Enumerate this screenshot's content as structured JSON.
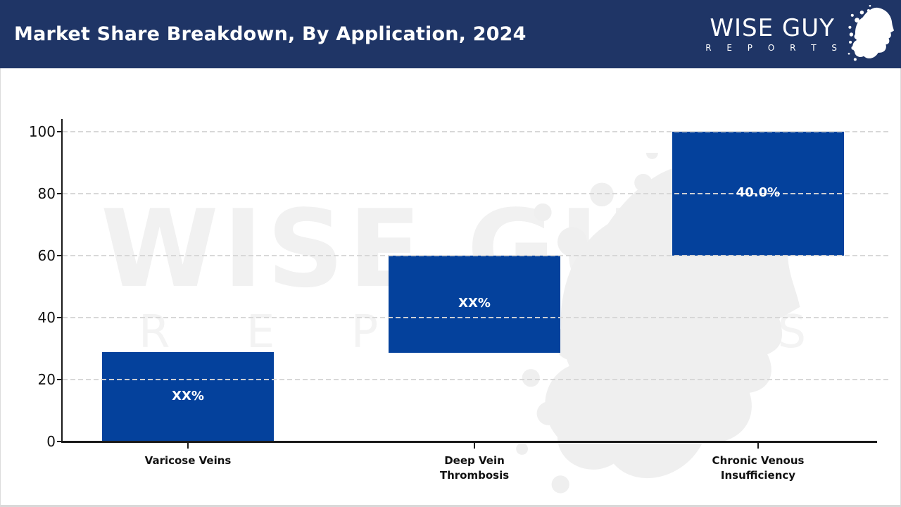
{
  "header": {
    "title": "Market Share Breakdown, By Application, 2024",
    "bg_color": "#1f3566",
    "logo_line1": "WISE GUY",
    "logo_line2": "R E P O R T S"
  },
  "watermark": {
    "line1": "WISE GUY",
    "line2": "R E P O R T S"
  },
  "chart_data": {
    "type": "bar",
    "variant": "floating-segment-breakdown",
    "title": "Market Share Breakdown, By Application, 2024",
    "categories": [
      "Varicose Veins",
      "Deep Vein Thrombosis",
      "Chronic Venous Insufficiency"
    ],
    "category_lines": [
      [
        "Varicose Veins"
      ],
      [
        "Deep Vein",
        "Thrombosis"
      ],
      [
        "Chronic Venous",
        "Insufficiency"
      ]
    ],
    "segments": [
      {
        "category": "Varicose Veins",
        "start": 0,
        "end": 28.8,
        "label": "XX%"
      },
      {
        "category": "Deep Vein Thrombosis",
        "start": 28.6,
        "end": 60,
        "label": "XX%"
      },
      {
        "category": "Chronic Venous Insufficiency",
        "start": 60,
        "end": 100,
        "label": "40.0%"
      }
    ],
    "yticks": [
      0,
      20,
      40,
      60,
      80,
      100
    ],
    "ylim": [
      0,
      104
    ],
    "xlabel": "",
    "ylabel": "",
    "legend": false,
    "grid": "dashed-horizontal",
    "bar_color": "#04419c",
    "bar_label_color": "#ffffff",
    "gridline_color": "#d8d8d8",
    "axis_color": "#1a1a1a"
  }
}
